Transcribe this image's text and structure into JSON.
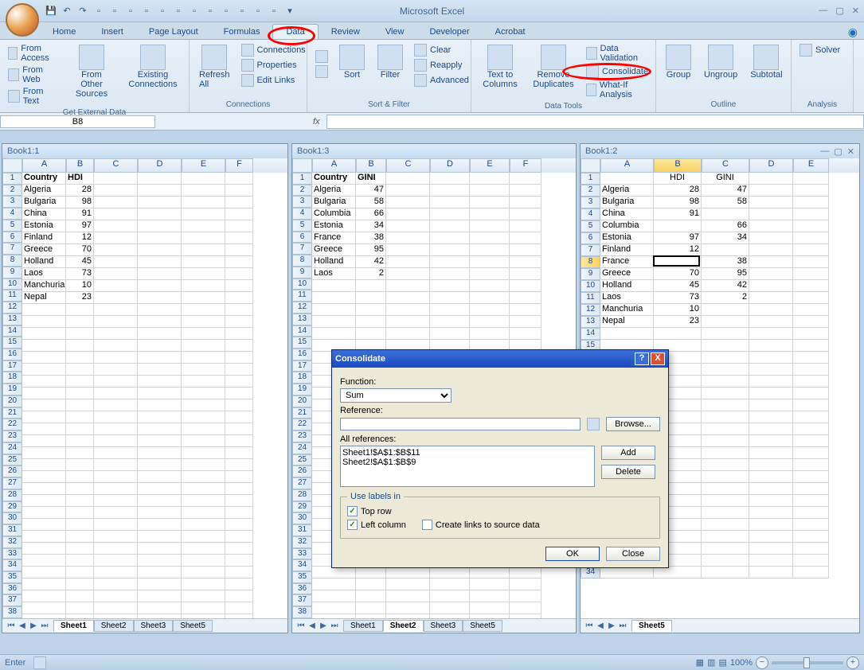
{
  "app_title": "Microsoft Excel",
  "ribbon_tabs": [
    "Home",
    "Insert",
    "Page Layout",
    "Formulas",
    "Data",
    "Review",
    "View",
    "Developer",
    "Acrobat"
  ],
  "active_tab_index": 4,
  "ribbon": {
    "ext_data": {
      "label": "Get External Data",
      "access": "From Access",
      "web": "From Web",
      "text": "From Text",
      "other": "From Other Sources",
      "existing": "Existing Connections"
    },
    "conn": {
      "label": "Connections",
      "refresh": "Refresh All",
      "connections": "Connections",
      "properties": "Properties",
      "edit_links": "Edit Links"
    },
    "sort_filter": {
      "label": "Sort & Filter",
      "az": "A↓Z",
      "sort": "Sort",
      "filter": "Filter",
      "clear": "Clear",
      "reapply": "Reapply",
      "advanced": "Advanced"
    },
    "data_tools": {
      "label": "Data Tools",
      "t2c": "Text to Columns",
      "dup": "Remove Duplicates",
      "validation": "Data Validation",
      "consolidate": "Consolidate",
      "whatif": "What-If Analysis"
    },
    "outline": {
      "label": "Outline",
      "group": "Group",
      "ungroup": "Ungroup",
      "subtotal": "Subtotal"
    },
    "analysis": {
      "label": "Analysis",
      "solver": "Solver"
    }
  },
  "name_box": "B8",
  "fx": "fx",
  "workbooks": [
    {
      "title": "Book1:1",
      "cols": [
        {
          "l": "A",
          "w": 55
        },
        {
          "l": "B",
          "w": 35
        },
        {
          "l": "C",
          "w": 55
        },
        {
          "l": "D",
          "w": 55
        },
        {
          "l": "E",
          "w": 55
        },
        {
          "l": "F",
          "w": 35
        }
      ],
      "rows": 38,
      "data": [
        [
          "Country",
          "HDI"
        ],
        [
          "Algeria",
          "28"
        ],
        [
          "Bulgaria",
          "98"
        ],
        [
          "China",
          "91"
        ],
        [
          "Estonia",
          "97"
        ],
        [
          "Finland",
          "12"
        ],
        [
          "Greece",
          "70"
        ],
        [
          "Holland",
          "45"
        ],
        [
          "Laos",
          "73"
        ],
        [
          "Manchuria",
          "10"
        ],
        [
          "Nepal",
          "23"
        ]
      ],
      "bold_row": 0,
      "sheets": [
        "Sheet1",
        "Sheet2",
        "Sheet3",
        "Sheet5"
      ],
      "active_sheet": 0
    },
    {
      "title": "Book1:3",
      "cols": [
        {
          "l": "A",
          "w": 55
        },
        {
          "l": "B",
          "w": 38
        },
        {
          "l": "C",
          "w": 55
        },
        {
          "l": "D",
          "w": 50
        },
        {
          "l": "E",
          "w": 50
        },
        {
          "l": "F",
          "w": 40
        }
      ],
      "rows": 38,
      "data": [
        [
          "Country",
          "GINI"
        ],
        [
          "Algeria",
          "47"
        ],
        [
          "Bulgaria",
          "58"
        ],
        [
          "Columbia",
          "66"
        ],
        [
          "Estonia",
          "34"
        ],
        [
          "France",
          "38"
        ],
        [
          "Greece",
          "95"
        ],
        [
          "Holland",
          "42"
        ],
        [
          "Laos",
          "2"
        ]
      ],
      "bold_row": 0,
      "sheets": [
        "Sheet1",
        "Sheet2",
        "Sheet3",
        "Sheet5"
      ],
      "active_sheet": 1
    },
    {
      "title": "Book1:2",
      "cols": [
        {
          "l": "A",
          "w": 67
        },
        {
          "l": "B",
          "w": 60
        },
        {
          "l": "C",
          "w": 60
        },
        {
          "l": "D",
          "w": 55
        },
        {
          "l": "E",
          "w": 45
        }
      ],
      "rows": 34,
      "data": [
        [
          "",
          "HDI",
          "GINI"
        ],
        [
          "Algeria",
          "28",
          "47"
        ],
        [
          "Bulgaria",
          "98",
          "58"
        ],
        [
          "China",
          "91",
          ""
        ],
        [
          "Columbia",
          "",
          "66"
        ],
        [
          "Estonia",
          "97",
          "34"
        ],
        [
          "Finland",
          "12",
          ""
        ],
        [
          "France",
          "",
          "38"
        ],
        [
          "Greece",
          "70",
          "95"
        ],
        [
          "Holland",
          "45",
          "42"
        ],
        [
          "Laos",
          "73",
          "2"
        ],
        [
          "Manchuria",
          "10",
          ""
        ],
        [
          "Nepal",
          "23",
          ""
        ]
      ],
      "center_row": 0,
      "sheets": [
        "Sheet5"
      ],
      "active_sheet": 0,
      "has_win_controls": true,
      "sel_col": 1,
      "sel_row": 7
    }
  ],
  "dialog": {
    "title": "Consolidate",
    "function_label": "Function:",
    "function_value": "Sum",
    "reference_label": "Reference:",
    "all_ref_label": "All references:",
    "refs": [
      "Sheet1!$A$1:$B$11",
      "Sheet2!$A$1:$B$9"
    ],
    "browse": "Browse...",
    "add": "Add",
    "delete": "Delete",
    "use_labels": "Use labels in",
    "top_row": "Top row",
    "left_col": "Left column",
    "create_links": "Create links to source data",
    "ok": "OK",
    "close": "Close"
  },
  "status": {
    "mode": "Enter",
    "zoom": "100%"
  }
}
